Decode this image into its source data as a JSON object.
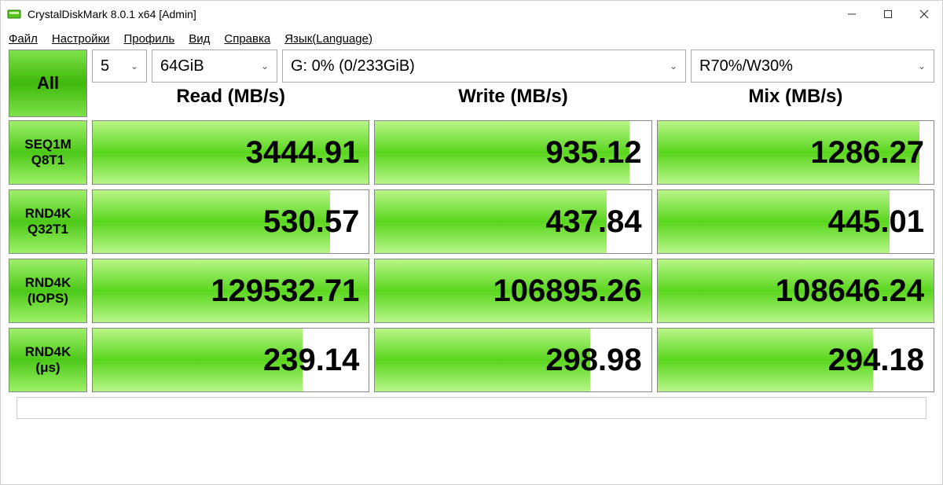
{
  "window": {
    "title": "CrystalDiskMark 8.0.1 x64 [Admin]"
  },
  "menu": {
    "file": "Файл",
    "settings": "Настройки",
    "profile": "Профиль",
    "view": "Вид",
    "help": "Справка",
    "language": "Язык(Language)"
  },
  "controls": {
    "all": "All",
    "runs": "5",
    "size": "64GiB",
    "drive": "G: 0% (0/233GiB)",
    "mix": "R70%/W30%"
  },
  "headers": {
    "read": "Read (MB/s)",
    "write": "Write (MB/s)",
    "mix": "Mix (MB/s)"
  },
  "rows": [
    {
      "label1": "SEQ1M",
      "label2": "Q8T1",
      "read": "3444.91",
      "write": "935.12",
      "mix": "1286.27",
      "rbar": 100,
      "wbar": 92,
      "mbar": 95
    },
    {
      "label1": "RND4K",
      "label2": "Q32T1",
      "read": "530.57",
      "write": "437.84",
      "mix": "445.01",
      "rbar": 86,
      "wbar": 84,
      "mbar": 84
    },
    {
      "label1": "RND4K",
      "label2": "(IOPS)",
      "read": "129532.71",
      "write": "106895.26",
      "mix": "108646.24",
      "rbar": 100,
      "wbar": 100,
      "mbar": 100
    },
    {
      "label1": "RND4K",
      "label2": "(μs)",
      "read": "239.14",
      "write": "298.98",
      "mix": "294.18",
      "rbar": 76,
      "wbar": 78,
      "mbar": 78
    }
  ],
  "colors": {
    "green_light": "#9ef06a",
    "green_dark": "#4cc818",
    "border": "#888888",
    "bg": "#ffffff"
  }
}
